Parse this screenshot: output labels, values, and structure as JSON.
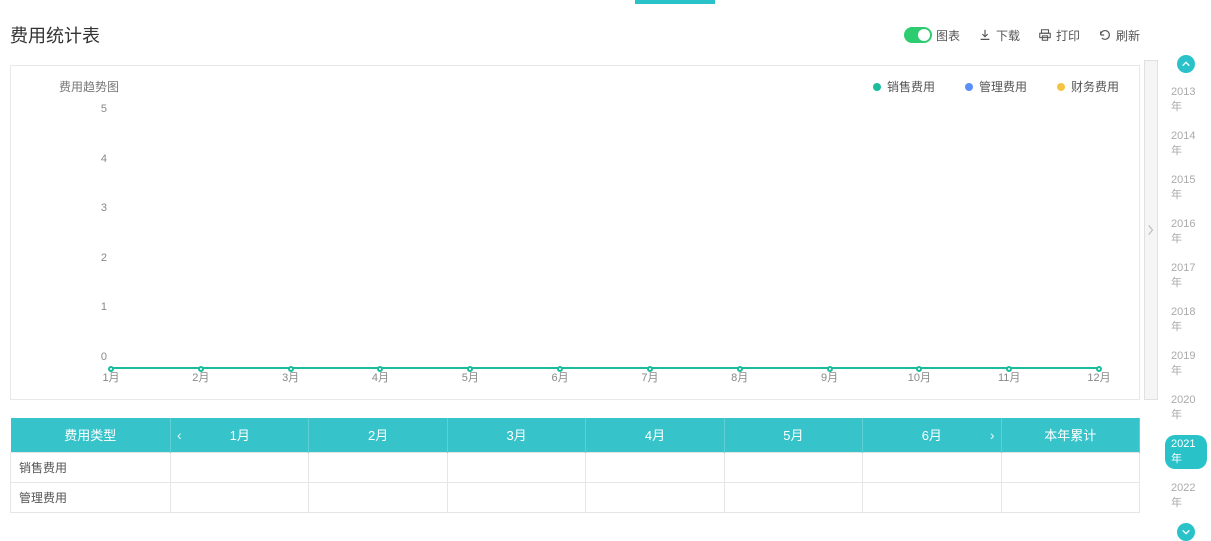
{
  "page": {
    "title": "费用统计表"
  },
  "toolbar": {
    "chart_toggle_label": "图表",
    "download_label": "下载",
    "print_label": "打印",
    "refresh_label": "刷新"
  },
  "chart": {
    "type": "line",
    "title": "费用趋势图",
    "background_color": "#ffffff",
    "axis_color": "#cccccc",
    "label_color": "#888888",
    "label_fontsize": 11,
    "ylim": [
      0,
      5
    ],
    "ytick_step": 1,
    "y_ticks": [
      "0",
      "1",
      "2",
      "3",
      "4",
      "5"
    ],
    "categories": [
      "1月",
      "2月",
      "3月",
      "4月",
      "5月",
      "6月",
      "7月",
      "8月",
      "9月",
      "10月",
      "11月",
      "12月"
    ],
    "legend": [
      {
        "label": "销售费用",
        "color": "#1abc9c"
      },
      {
        "label": "管理费用",
        "color": "#5b8ff9"
      },
      {
        "label": "财务费用",
        "color": "#f5c542"
      }
    ],
    "series": [
      {
        "name": "销售费用",
        "color": "#1abc9c",
        "values": [
          0,
          0,
          0,
          0,
          0,
          0,
          0,
          0,
          0,
          0,
          0,
          0
        ],
        "line_width": 2,
        "marker_size": 6
      },
      {
        "name": "管理费用",
        "color": "#5b8ff9",
        "values": [
          0,
          0,
          0,
          0,
          0,
          0,
          0,
          0,
          0,
          0,
          0,
          0
        ],
        "line_width": 2,
        "marker_size": 6
      },
      {
        "name": "财务费用",
        "color": "#f5c542",
        "values": [
          0,
          0,
          0,
          0,
          0,
          0,
          0,
          0,
          0,
          0,
          0,
          0
        ],
        "line_width": 2,
        "marker_size": 6
      }
    ]
  },
  "table": {
    "header_bg": "#36c3ca",
    "header_color": "#ffffff",
    "border_color": "#e6e6e6",
    "first_col_header": "费用类型",
    "month_columns": [
      "1月",
      "2月",
      "3月",
      "4月",
      "5月",
      "6月"
    ],
    "total_col_header": "本年累计",
    "rows": [
      {
        "label": "销售费用",
        "cells": [
          "",
          "",
          "",
          "",
          "",
          ""
        ],
        "total": ""
      },
      {
        "label": "管理费用",
        "cells": [
          "",
          "",
          "",
          "",
          "",
          ""
        ],
        "total": ""
      }
    ]
  },
  "years": {
    "items": [
      "2013年",
      "2014年",
      "2015年",
      "2016年",
      "2017年",
      "2018年",
      "2019年",
      "2020年",
      "2021年",
      "2022年"
    ],
    "active_index": 8
  }
}
